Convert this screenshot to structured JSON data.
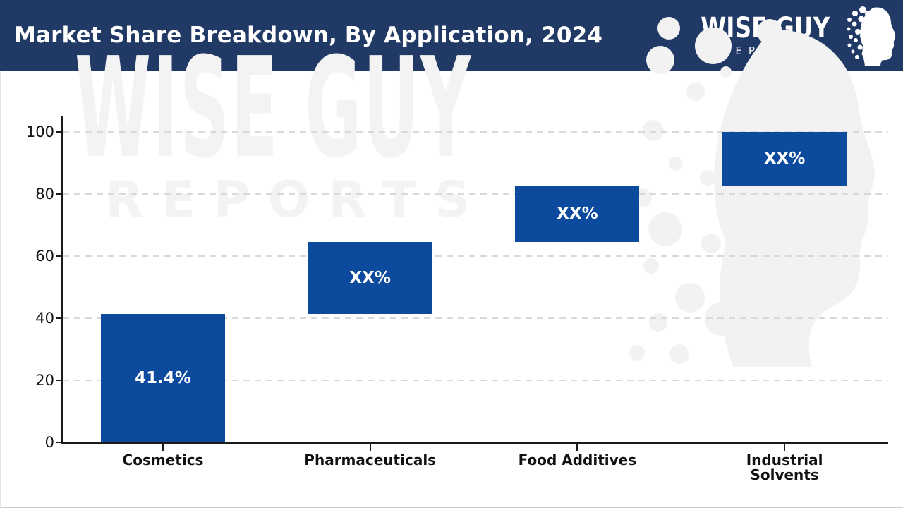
{
  "header": {
    "title": "Market Share Breakdown, By Application, 2024",
    "logo_line1": "WISE GUY",
    "logo_line2": "REPORTS"
  },
  "watermark": {
    "line1": "WISE GUY",
    "line2": "REPORTS"
  },
  "icons": {
    "logo_head": "head-profile-dots-icon",
    "watermark_head": "head-profile-dots-watermark"
  },
  "colors": {
    "header_bg": "#213965",
    "bar_blue": "#0c4a9e",
    "bar_label": "#ffffff",
    "axis": "#1a1a1a",
    "grid": "#d9d9d9",
    "watermark": "#f3f3f3",
    "tick_text": "#111111"
  },
  "chart_data": {
    "type": "bar",
    "subtype": "waterfall",
    "title": "Market Share Breakdown, By Application, 2024",
    "categories": [
      "Cosmetics",
      "Pharmaceuticals",
      "Food Additives",
      "Industrial Solvents"
    ],
    "bars": [
      {
        "category": "Cosmetics",
        "start": 0,
        "end": 41.4,
        "label": "41.4%"
      },
      {
        "category": "Pharmaceuticals",
        "start": 41.4,
        "end": 64.5,
        "label": "XX%"
      },
      {
        "category": "Food Additives",
        "start": 64.5,
        "end": 82.8,
        "label": "XX%"
      },
      {
        "category": "Industrial Solvents",
        "start": 82.8,
        "end": 100,
        "label": "XX%"
      }
    ],
    "xlabel": "",
    "ylabel": "",
    "ylim": [
      0,
      100
    ],
    "yticks": [
      0,
      20,
      40,
      60,
      80,
      100
    ],
    "grid": "horizontal-dashed",
    "legend": "none",
    "bar_color": "#0c4a9e",
    "label_color": "#ffffff"
  }
}
